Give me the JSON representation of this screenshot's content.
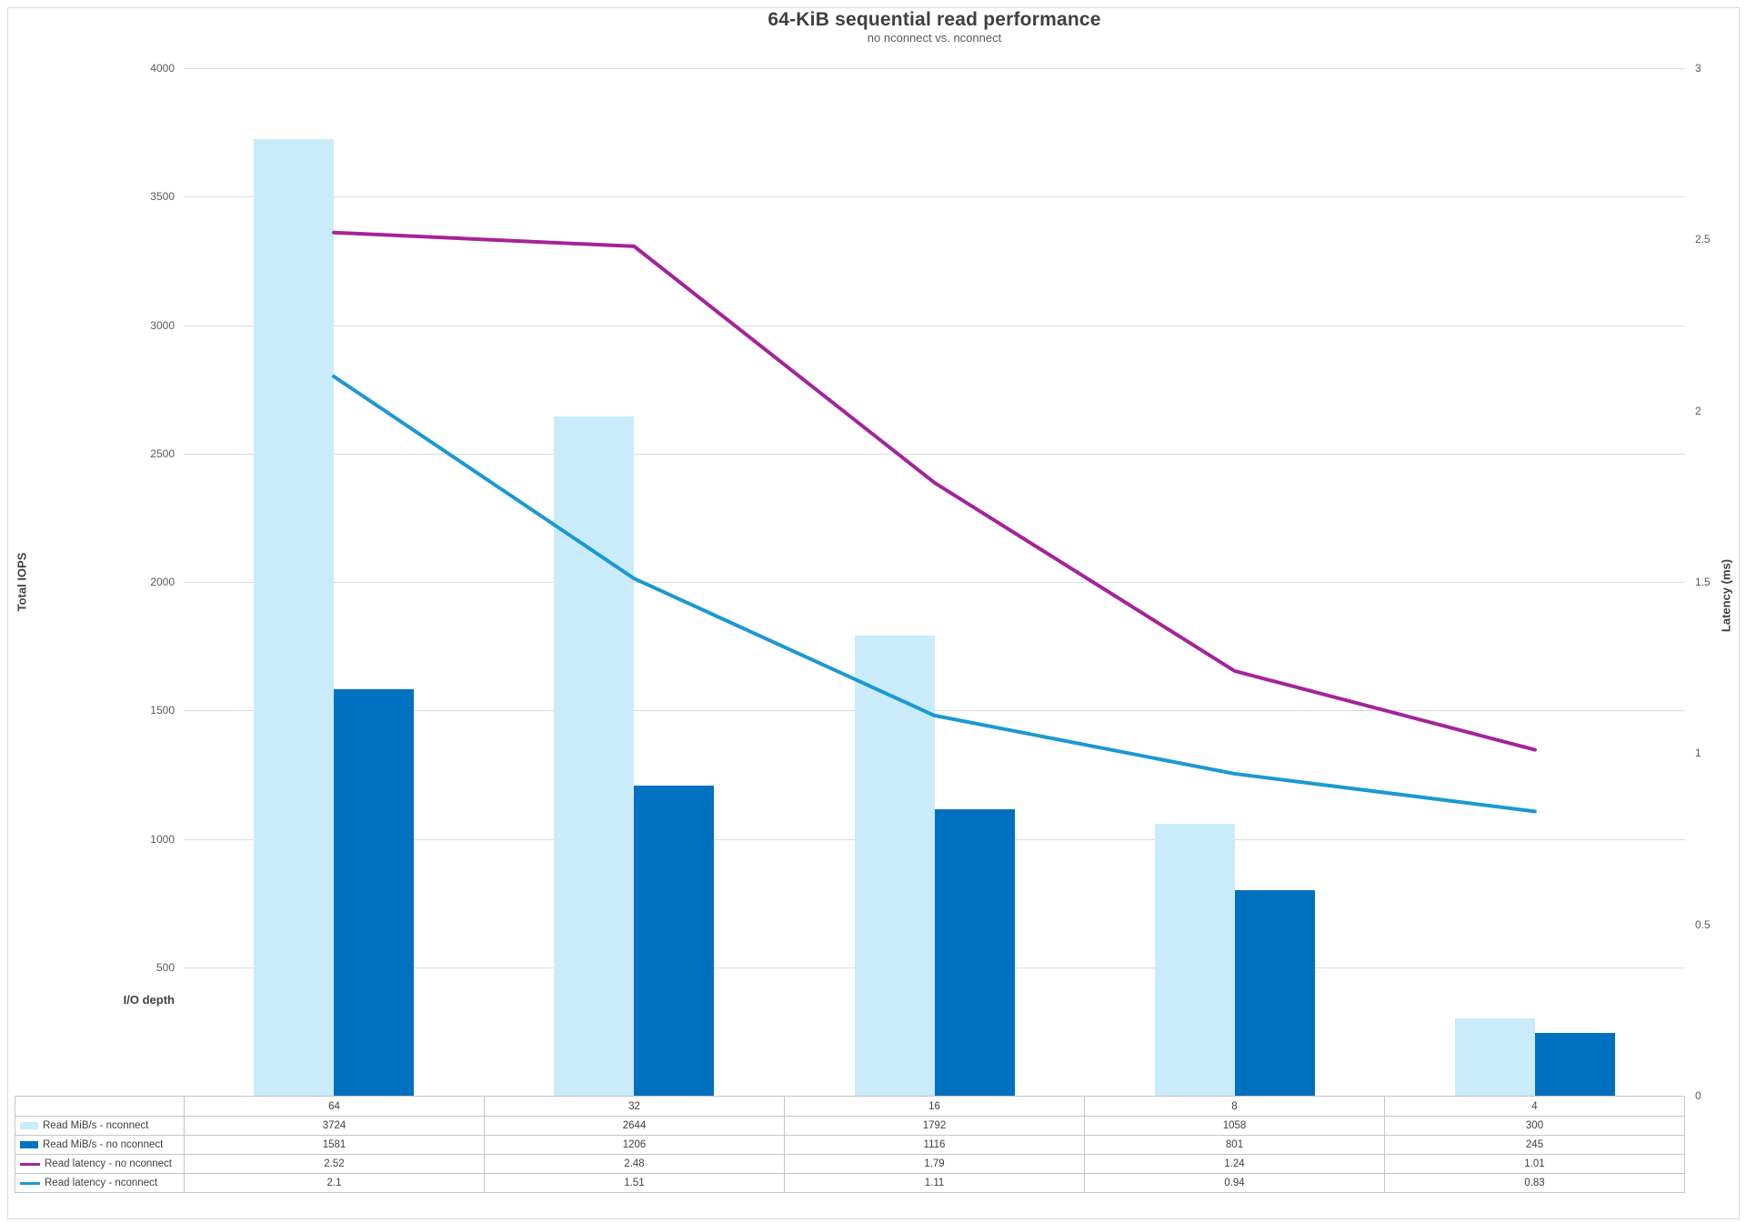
{
  "chart_data": {
    "type": "combo-bar-line",
    "title": "64-KiB sequential read performance",
    "subtitle": "no nconnect vs. nconnect",
    "categories": [
      "64",
      "32",
      "16",
      "8",
      "4"
    ],
    "x_axis_title": "I/O depth",
    "y_left": {
      "title": "Total IOPS",
      "min": 0,
      "max": 4000,
      "ticks": [
        4000,
        3500,
        3000,
        2500,
        2000,
        1500,
        1000,
        500
      ]
    },
    "y_right": {
      "title": "Latency (ms)",
      "min": 0,
      "max": 3,
      "ticks": [
        3,
        2.5,
        2,
        1.5,
        1,
        0.5,
        0
      ]
    },
    "grid": "horizontal",
    "legend_position": "table-left",
    "series": [
      {
        "name": "Read MiB/s - nconnect",
        "type": "bar",
        "axis": "left",
        "color": "#CAEBFA",
        "values": [
          3724,
          2644,
          1792,
          1058,
          300
        ]
      },
      {
        "name": "Read MiB/s - no nconnect",
        "type": "bar",
        "axis": "left",
        "color": "#0070C0",
        "values": [
          1581,
          1206,
          1116,
          801,
          245
        ]
      },
      {
        "name": "Read latency - no nconnect",
        "type": "line",
        "axis": "right",
        "color": "#A4239A",
        "values": [
          2.52,
          2.48,
          1.79,
          1.24,
          1.01
        ]
      },
      {
        "name": "Read latency - nconnect",
        "type": "line",
        "axis": "right",
        "color": "#1B98D4",
        "values": [
          2.1,
          1.51,
          1.11,
          0.94,
          0.83
        ]
      }
    ]
  }
}
